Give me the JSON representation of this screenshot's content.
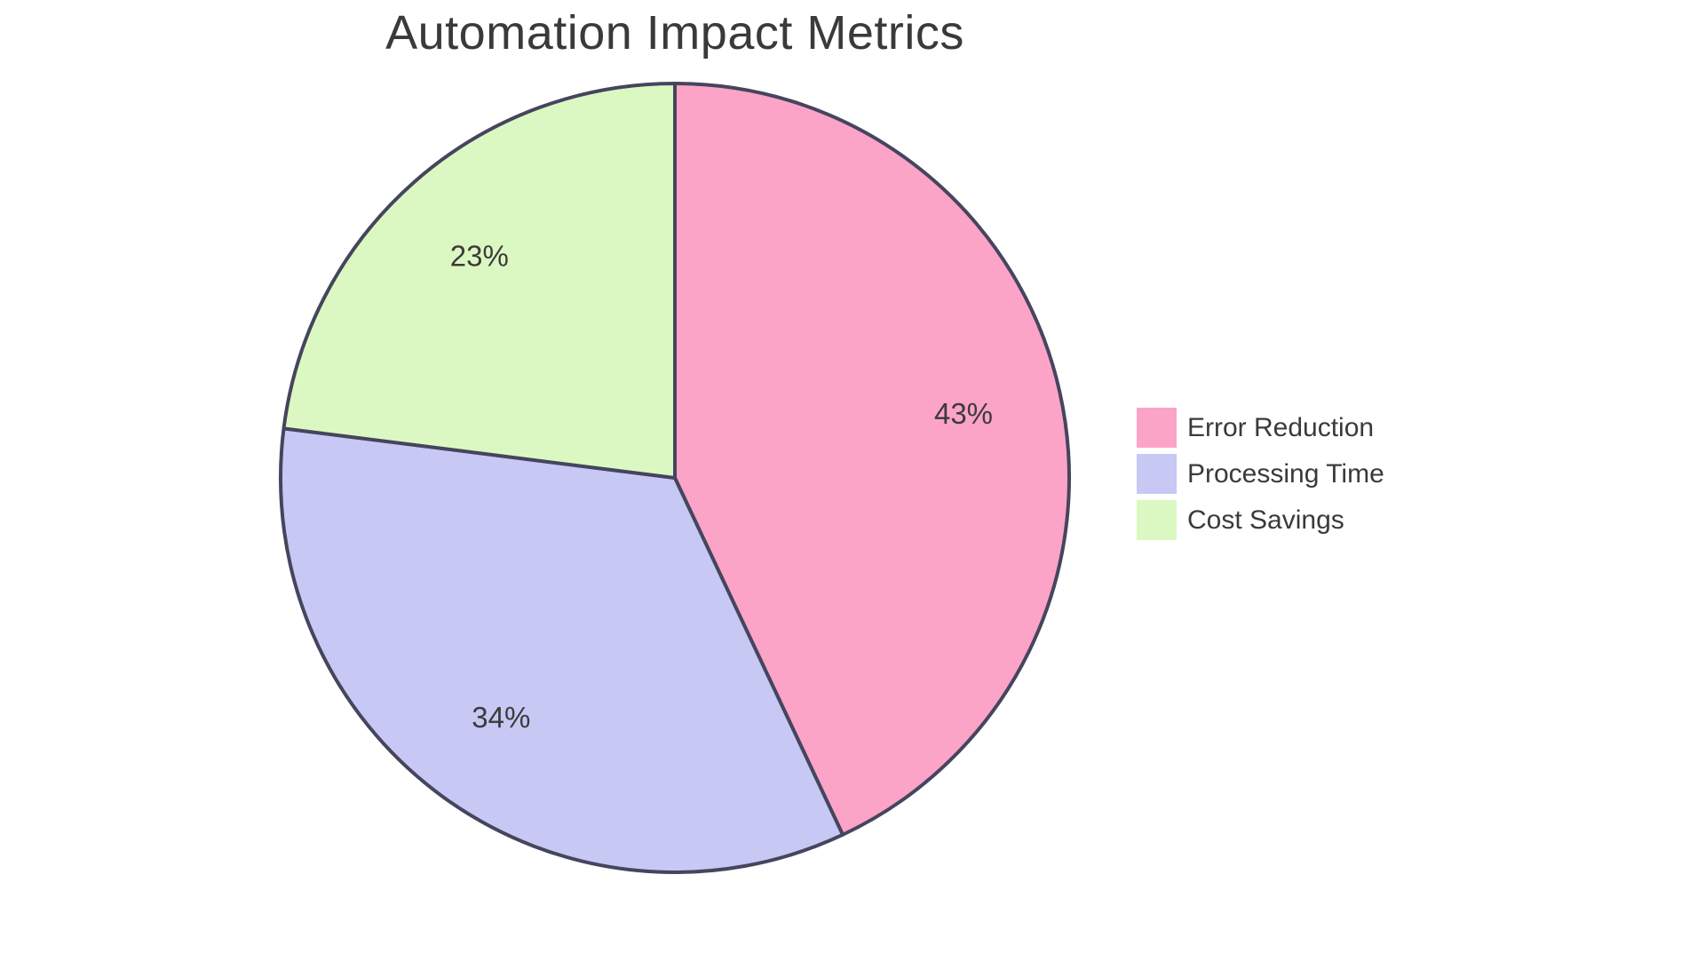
{
  "title": "Automation Impact Metrics",
  "chart_data": {
    "type": "pie",
    "title": "Automation Impact Metrics",
    "start_angle": "top",
    "direction": "clockwise",
    "slices": [
      {
        "label": "Error Reduction",
        "value": 43,
        "pct_label": "43%",
        "color": "#FCA3C8"
      },
      {
        "label": "Processing Time",
        "value": 34,
        "pct_label": "34%",
        "color": "#C8C8F5"
      },
      {
        "label": "Cost Savings",
        "value": 23,
        "pct_label": "23%",
        "color": "#DCF8C2"
      }
    ],
    "edge_color": "#45455E",
    "text_color": "#3b3b3b",
    "label_distance": 0.75,
    "legend_position": "right"
  },
  "legend": {
    "items": [
      {
        "label": "Error Reduction"
      },
      {
        "label": "Processing Time"
      },
      {
        "label": "Cost Savings"
      }
    ]
  }
}
